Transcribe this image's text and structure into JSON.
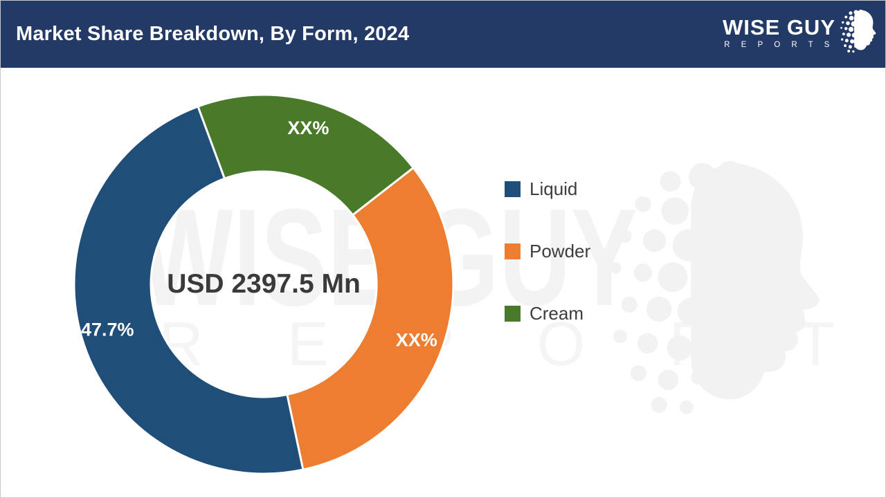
{
  "header": {
    "title": "Market Share Breakdown, By Form, 2024",
    "logo": {
      "line1": "WISE GUY",
      "line2": "R E P O R T S"
    }
  },
  "watermark": {
    "line1": "WISE GUY",
    "line2": "R E P O R T S"
  },
  "chart_data": {
    "type": "donut",
    "title": "Market Share Breakdown, By Form, 2024",
    "center_label": "USD 2397.5 Mn",
    "start_angle_deg": 168,
    "label_radius": 235,
    "segments": [
      {
        "name": "Liquid",
        "display_label": "47.7%",
        "percent_est": 47.7,
        "color": "#1F4E79"
      },
      {
        "name": "Cream",
        "display_label": "XX%",
        "percent_est": 20.1,
        "color": "#487A2A"
      },
      {
        "name": "Powder",
        "display_label": "XX%",
        "percent_est": 32.2,
        "color": "#ED7D31"
      }
    ],
    "legend_position": "right",
    "note": "Powder and Cream shares are masked as 'XX%' in the image; their percent_est values are estimated from arc angles."
  },
  "legend": {
    "items": [
      {
        "label": "Liquid",
        "color": "#1F4E79"
      },
      {
        "label": "Powder",
        "color": "#ED7D31"
      },
      {
        "label": "Cream",
        "color": "#487A2A"
      }
    ]
  }
}
